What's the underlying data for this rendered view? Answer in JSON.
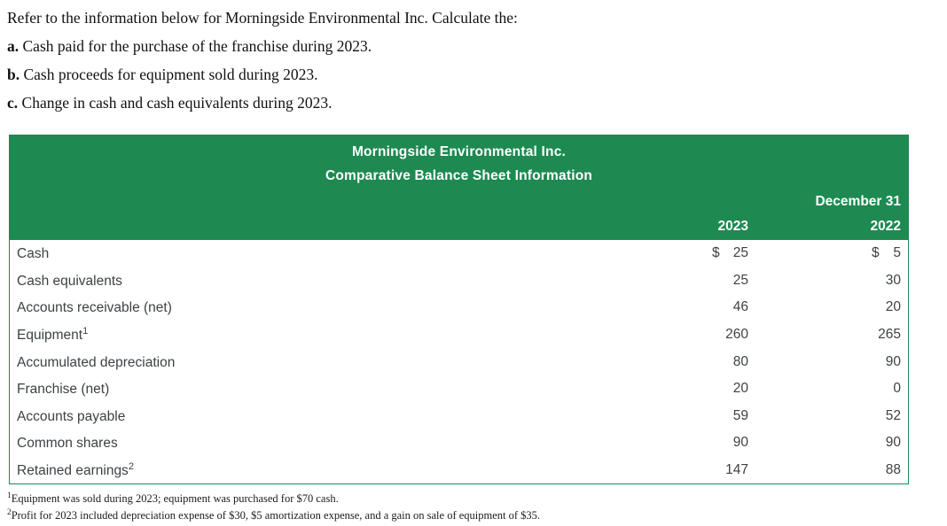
{
  "intro": {
    "line": "Refer to the information below for Morningside Environmental Inc. Calculate the:",
    "items": [
      {
        "letter": "a.",
        "text": " Cash paid for the purchase of the franchise during 2023."
      },
      {
        "letter": "b.",
        "text": " Cash proceeds for equipment sold during 2023."
      },
      {
        "letter": "c.",
        "text": " Change in cash and cash equivalents during 2023."
      }
    ]
  },
  "table": {
    "title1": "Morningside Environmental Inc.",
    "title2": "Comparative Balance Sheet Information",
    "date_header": "December 31",
    "col_headers": [
      "2023",
      "2022"
    ],
    "rows": [
      {
        "label": "Cash",
        "sup": "",
        "currency": "$",
        "v2023": "25",
        "v2022": "5"
      },
      {
        "label": "Cash equivalents",
        "sup": "",
        "currency": "",
        "v2023": "25",
        "v2022": "30"
      },
      {
        "label": "Accounts receivable (net)",
        "sup": "",
        "currency": "",
        "v2023": "46",
        "v2022": "20"
      },
      {
        "label": "Equipment",
        "sup": "1",
        "currency": "",
        "v2023": "260",
        "v2022": "265"
      },
      {
        "label": "Accumulated depreciation",
        "sup": "",
        "currency": "",
        "v2023": "80",
        "v2022": "90"
      },
      {
        "label": "Franchise (net)",
        "sup": "",
        "currency": "",
        "v2023": "20",
        "v2022": "0"
      },
      {
        "label": "Accounts payable",
        "sup": "",
        "currency": "",
        "v2023": "59",
        "v2022": "52"
      },
      {
        "label": "Common shares",
        "sup": "",
        "currency": "",
        "v2023": "90",
        "v2022": "90"
      },
      {
        "label": "Retained earnings",
        "sup": "2",
        "currency": "",
        "v2023": "147",
        "v2022": "88"
      }
    ],
    "colors": {
      "header_bg": "#1e8a52",
      "border": "#1e8a52",
      "header_text": "#ffffff",
      "body_text": "#3d4246"
    }
  },
  "footnotes": [
    {
      "sup": "1",
      "text": "Equipment was sold during 2023; equipment was purchased for $70 cash."
    },
    {
      "sup": "2",
      "text": "Profit for 2023 included depreciation expense of $30, $5 amortization expense, and a gain on sale of equipment of $35."
    }
  ]
}
